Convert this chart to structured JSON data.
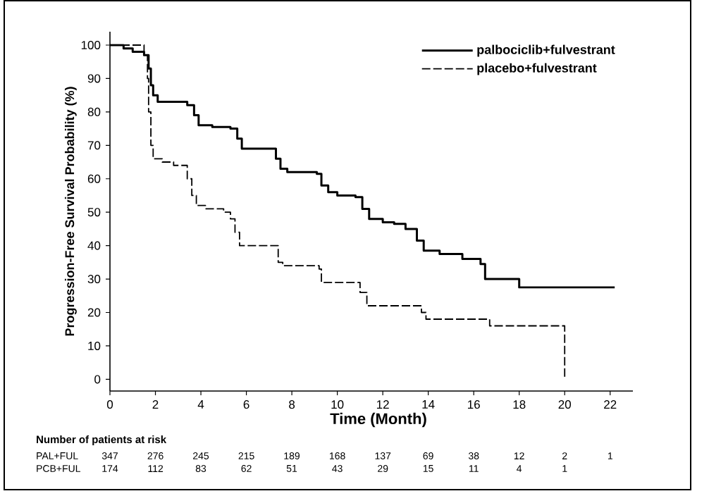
{
  "chart_data": {
    "type": "step",
    "xlabel": "Time (Month)",
    "ylabel": "Progression-Free Survival Probability (%)",
    "xlim": [
      0,
      23
    ],
    "ylim": [
      -3.5,
      104
    ],
    "xticks": [
      0,
      2,
      4,
      6,
      8,
      10,
      12,
      14,
      16,
      18,
      20,
      22
    ],
    "yticks": [
      0,
      10,
      20,
      30,
      40,
      50,
      60,
      70,
      80,
      90,
      100
    ],
    "grid": false,
    "legend": "top right",
    "marker": "none",
    "series": [
      {
        "name": "palbociclib+fulvestrant",
        "color": "#000000",
        "line_style": "solid",
        "x": [
          0,
          0.6,
          1.0,
          1.5,
          1.7,
          1.8,
          1.9,
          2.1,
          3.0,
          3.4,
          3.7,
          3.9,
          4.5,
          5.3,
          5.6,
          5.8,
          7.1,
          7.3,
          7.5,
          7.8,
          9.1,
          9.3,
          9.6,
          10.0,
          10.8,
          11.1,
          11.4,
          12.0,
          12.5,
          13.0,
          13.5,
          13.8,
          14.5,
          15.5,
          16.3,
          16.5,
          18.0,
          22.2
        ],
        "values": [
          100,
          99,
          98,
          97,
          93,
          88,
          85,
          83,
          83,
          82,
          79,
          76,
          75.5,
          75,
          72,
          69,
          69,
          66,
          63,
          62,
          61.5,
          58,
          56,
          55,
          54.5,
          51,
          48,
          47,
          46.5,
          45,
          41.5,
          38.5,
          37.5,
          36,
          34.5,
          30,
          27.5,
          27.5
        ]
      },
      {
        "name": "placebo+fulvestrant",
        "color": "#000000",
        "line_style": "dashed",
        "x": [
          0,
          1.5,
          1.65,
          1.7,
          1.8,
          1.9,
          2.3,
          2.8,
          3.4,
          3.6,
          3.8,
          4.2,
          5.0,
          5.3,
          5.5,
          5.7,
          7.2,
          7.4,
          7.6,
          9.2,
          9.3,
          10.8,
          11.0,
          11.3,
          13.4,
          13.7,
          13.9,
          16.6,
          16.7,
          20.0,
          20.0
        ],
        "values": [
          100,
          97,
          90,
          80,
          70,
          66,
          65,
          64,
          60,
          55,
          52,
          51,
          50,
          48,
          44,
          40,
          40,
          35,
          34,
          33,
          29,
          29,
          26,
          22,
          22,
          20,
          18,
          18,
          16,
          16,
          0
        ]
      }
    ],
    "annotations": [
      "Number of patients at risk",
      "PAL+FUL",
      "347",
      "276",
      "245",
      "215",
      "189",
      "168",
      "137",
      "69",
      "38",
      "12",
      "2",
      "1",
      "PCB+FUL",
      "174",
      "112",
      "83",
      "62",
      "51",
      "43",
      "29",
      "15",
      "11",
      "4",
      "1"
    ]
  }
}
